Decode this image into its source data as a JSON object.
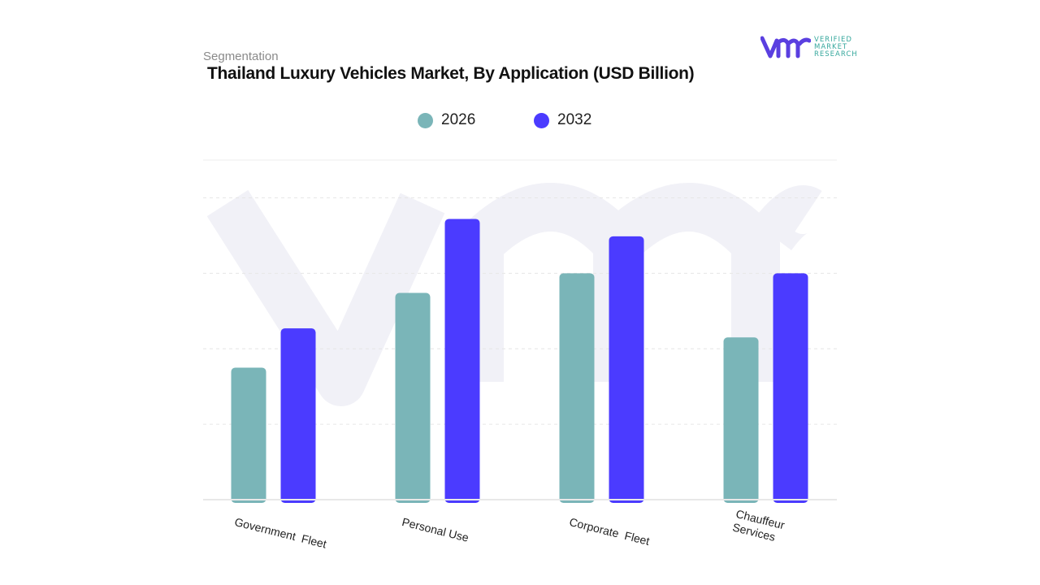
{
  "header": {
    "segment_label": "Segmentation",
    "title": "Thailand Luxury Vehicles Market, By Application (USD Billion)"
  },
  "logo": {
    "line1": "VERIFIED",
    "line2": "MARKET",
    "line3": "RESEARCH",
    "mark": "vmr"
  },
  "colors": {
    "2026": "#7ab5b8",
    "2032": "#4b3bff",
    "logo_purple": "#5a3fe0",
    "logo_teal": "#35a79c"
  },
  "chart_data": {
    "type": "bar",
    "title": "Thailand Luxury Vehicles Market, By Application (USD Billion)",
    "categories": [
      "Government  Fleet",
      "Personal Use",
      "Corporate  Fleet",
      "Chauffeur\nServices"
    ],
    "series": [
      {
        "name": "2026",
        "values": [
          1.75,
          2.74,
          3.0,
          2.15
        ]
      },
      {
        "name": "2032",
        "values": [
          2.27,
          3.72,
          3.49,
          3.0
        ]
      }
    ],
    "xlabel": "",
    "ylabel": "",
    "ylim": [
      0,
      4.5
    ],
    "grid": true,
    "legend": "top-center",
    "y_tick_labels_shown": false
  }
}
